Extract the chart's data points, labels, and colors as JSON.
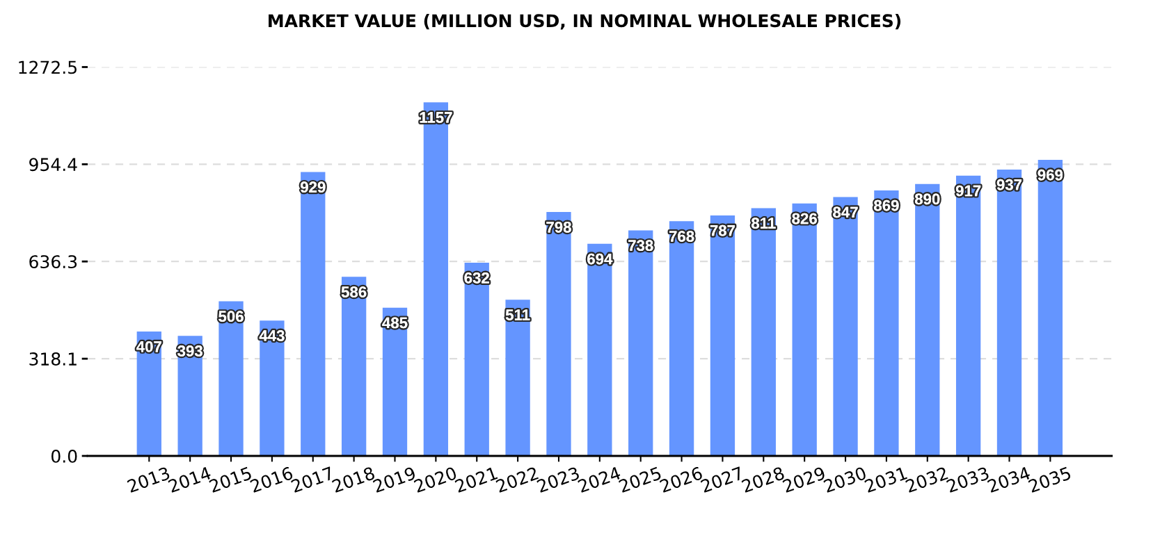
{
  "chart_data": {
    "type": "bar",
    "title": "MARKET VALUE (MILLION USD, IN NOMINAL WHOLESALE PRICES)",
    "categories": [
      "2013",
      "2014",
      "2015",
      "2016",
      "2017",
      "2018",
      "2019",
      "2020",
      "2021",
      "2022",
      "2023",
      "2024",
      "2025",
      "2026",
      "2027",
      "2028",
      "2029",
      "2030",
      "2031",
      "2032",
      "2033",
      "2034",
      "2035"
    ],
    "values": [
      407,
      393,
      506,
      443,
      929,
      586,
      485,
      1157,
      632,
      511,
      798,
      694,
      738,
      768,
      787,
      811,
      826,
      847,
      869,
      890,
      917,
      937,
      969
    ],
    "color": "#6495ff",
    "ylim": [
      0,
      1272.5
    ],
    "yticks": [
      {
        "value": 0,
        "label": "0.0"
      },
      318.1,
      636.3,
      954.4,
      1272.5
    ],
    "grid": "y",
    "data_labels": true
  }
}
